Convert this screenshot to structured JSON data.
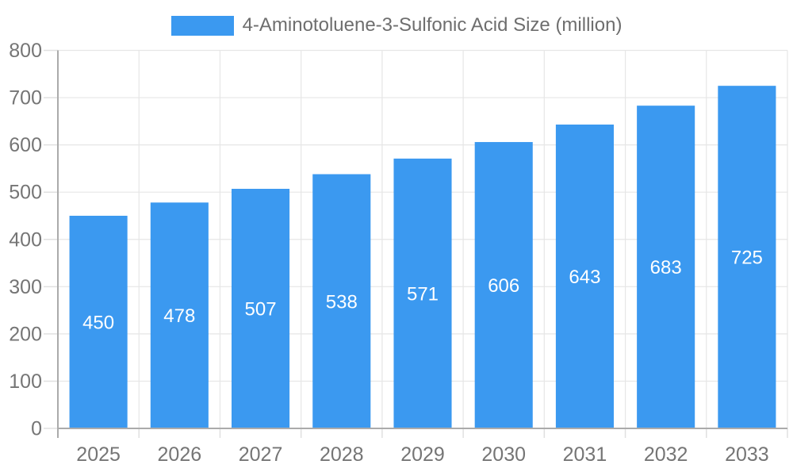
{
  "legend": {
    "label": "4-Aminotoluene-3-Sulfonic Acid Size (million)"
  },
  "chart_data": {
    "type": "bar",
    "title": "4-Aminotoluene-3-Sulfonic Acid Size (million)",
    "categories": [
      "2025",
      "2026",
      "2027",
      "2028",
      "2029",
      "2030",
      "2031",
      "2032",
      "2033"
    ],
    "values": [
      450,
      478,
      507,
      538,
      571,
      606,
      643,
      683,
      725
    ],
    "xlabel": "",
    "ylabel": "",
    "ylim": [
      0,
      800
    ],
    "yticks": [
      0,
      100,
      200,
      300,
      400,
      500,
      600,
      700,
      800
    ],
    "grid": true,
    "legend_position": "top",
    "value_labels": "inside-center",
    "colors": {
      "bar": "#3B99F0",
      "grid": "#E6E6E6",
      "tick": "#E0E0E0",
      "axis": "#ABABAB",
      "axis_label": "#757575",
      "value_label": "#FFFFFF",
      "legend_text": "#6E6E6E"
    }
  }
}
